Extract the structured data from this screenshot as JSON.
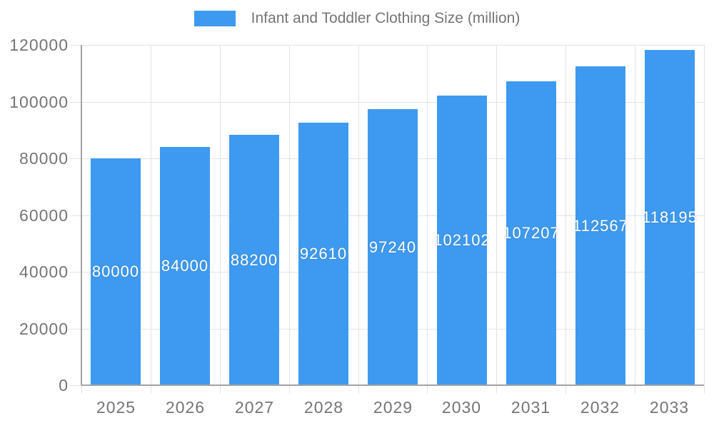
{
  "chart_data": {
    "type": "bar",
    "title": "Infant and Toddler Clothing Size (million)",
    "series_name": "Infant and Toddler Clothing Size (million)",
    "categories": [
      "2025",
      "2026",
      "2027",
      "2028",
      "2029",
      "2030",
      "2031",
      "2032",
      "2033"
    ],
    "values": [
      80000,
      84000,
      88200,
      92610,
      97240,
      102102,
      107207,
      112567,
      118195
    ],
    "value_labels": [
      80000,
      84000,
      88200,
      92610,
      97240,
      102102,
      107207,
      112567,
      118195
    ],
    "xlabel": "",
    "ylabel": "",
    "ylim": [
      0,
      120000
    ],
    "yticks": [
      0,
      20000,
      40000,
      60000,
      80000,
      100000,
      120000
    ],
    "grid": "on",
    "legend_position": "top",
    "value_label_position": "inside-center"
  },
  "colors": {
    "bar": "#3D9AF0",
    "grid": "#e3e3e3",
    "axis": "#a3a3a3",
    "tick_text": "#757575",
    "value_text": "#ffffff",
    "background": "#ffffff"
  }
}
